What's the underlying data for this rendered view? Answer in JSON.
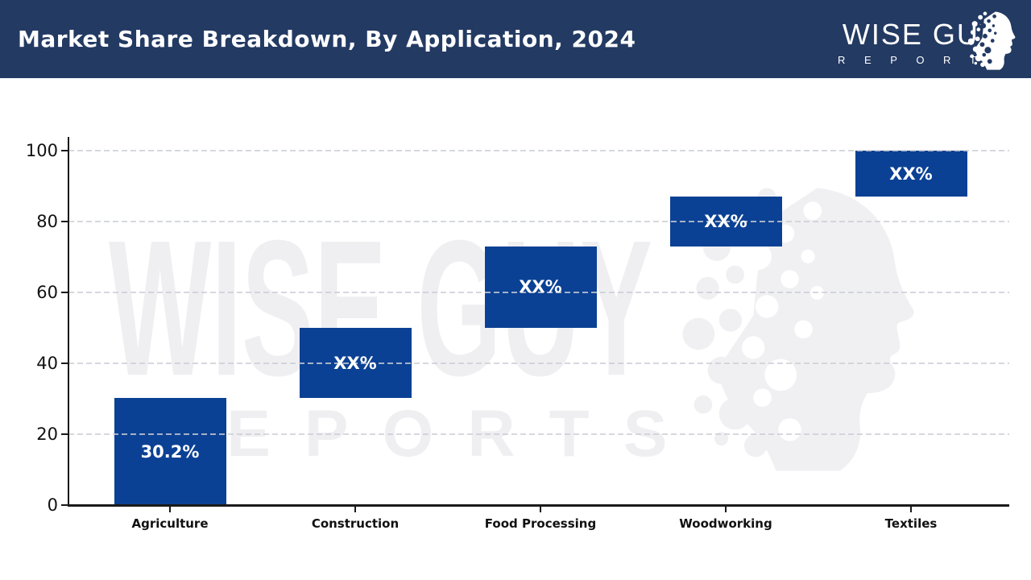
{
  "header": {
    "title": "Market Share Breakdown, By Application, 2024",
    "logo": {
      "line1": "WISE GUY",
      "line2": "REPORTS"
    }
  },
  "watermark": {
    "line1": "WISE GUY",
    "line2": "REPORTS"
  },
  "colors": {
    "header_bg": "#233a63",
    "bar": "#0b4194",
    "bar_label": "#ffffff",
    "axis": "#1a1a1a",
    "gridline": "#dfdfdf",
    "watermark": "#efeff2"
  },
  "chart_data": {
    "type": "bar",
    "subtype": "waterfall",
    "title": "Market Share Breakdown, By Application, 2024",
    "xlabel": "",
    "ylabel": "",
    "categories": [
      "Agriculture",
      "Construction",
      "Food Processing",
      "Woodworking",
      "Textiles"
    ],
    "segments": [
      {
        "category": "Agriculture",
        "start": 0,
        "end": 30.2,
        "label": "30.2%"
      },
      {
        "category": "Construction",
        "start": 30.2,
        "end": 50,
        "label": "XX%"
      },
      {
        "category": "Food Processing",
        "start": 50,
        "end": 73,
        "label": "XX%"
      },
      {
        "category": "Woodworking",
        "start": 73,
        "end": 87,
        "label": "XX%"
      },
      {
        "category": "Textiles",
        "start": 87,
        "end": 100,
        "label": "XX%"
      }
    ],
    "yticks": [
      0,
      20,
      40,
      60,
      80,
      100
    ],
    "ylim": [
      0,
      104
    ],
    "grid": "horizontal-dashed",
    "legend": "none",
    "bar_color": "#0b4194",
    "value_label_color": "#ffffff"
  }
}
